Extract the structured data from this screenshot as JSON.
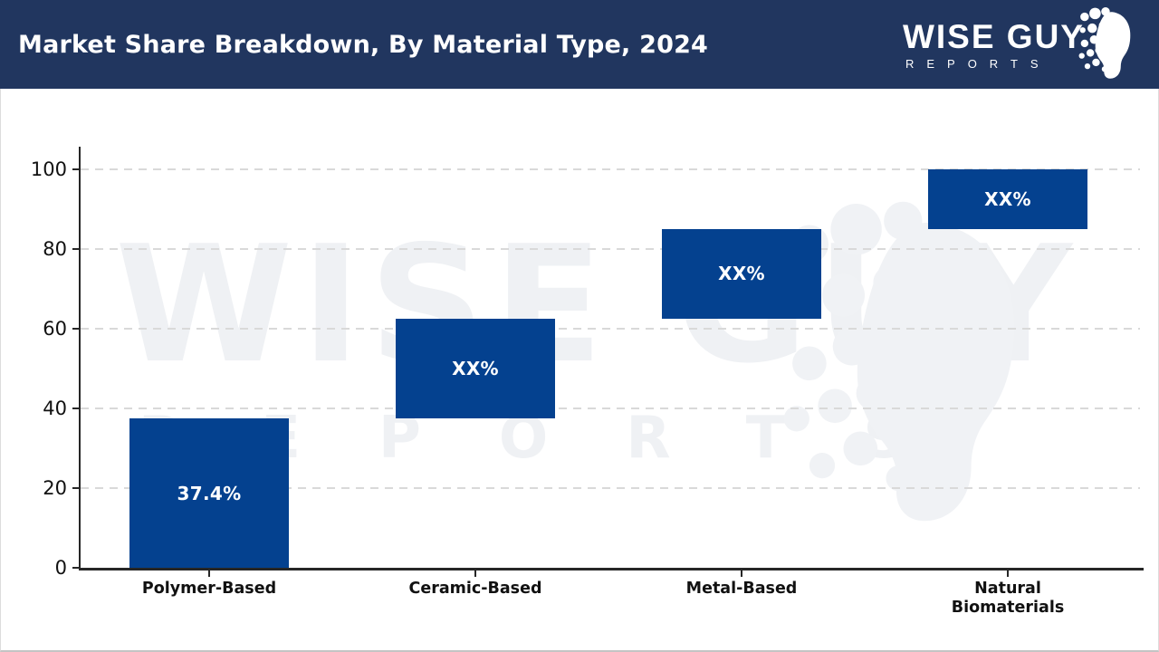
{
  "header": {
    "title": "Market Share Breakdown, By Material Type, 2024",
    "logo": {
      "line1": "WISE GUY",
      "line2": "REPORTS"
    }
  },
  "watermark": {
    "line1": "WISE GUY",
    "line2": "REPORTS"
  },
  "chart_data": {
    "type": "bar",
    "subtype": "floating-segment (waterfall-style market share)",
    "title": "Market Share Breakdown, By Material Type, 2024",
    "categories": [
      "Polymer-Based",
      "Ceramic-Based",
      "Metal-Based",
      "Natural\nBiomaterials"
    ],
    "bars": [
      {
        "category": "Polymer-Based",
        "start": 0,
        "end": 37.4,
        "value": 37.4,
        "label": "37.4%"
      },
      {
        "category": "Ceramic-Based",
        "start": 37.4,
        "end": 62.6,
        "value": 25.2,
        "label": "XX%"
      },
      {
        "category": "Metal-Based",
        "start": 62.6,
        "end": 85.0,
        "value": 22.4,
        "label": "XX%"
      },
      {
        "category": "Natural Biomaterials",
        "start": 85.0,
        "end": 100.0,
        "value": 15.0,
        "label": "XX%"
      }
    ],
    "xlabel": "",
    "ylabel": "",
    "ylim": [
      0,
      100
    ],
    "yticks": [
      0,
      20,
      40,
      60,
      80,
      100
    ],
    "grid": "horizontal dashed",
    "legend": "none",
    "bar_color": "#04418f",
    "bar_label_color": "#ffffff"
  },
  "colors": {
    "header_bg": "#21365f",
    "bar": "#04418f",
    "watermark": "#eff1f4",
    "gridline": "#d9d9d9",
    "axis": "#262626"
  }
}
